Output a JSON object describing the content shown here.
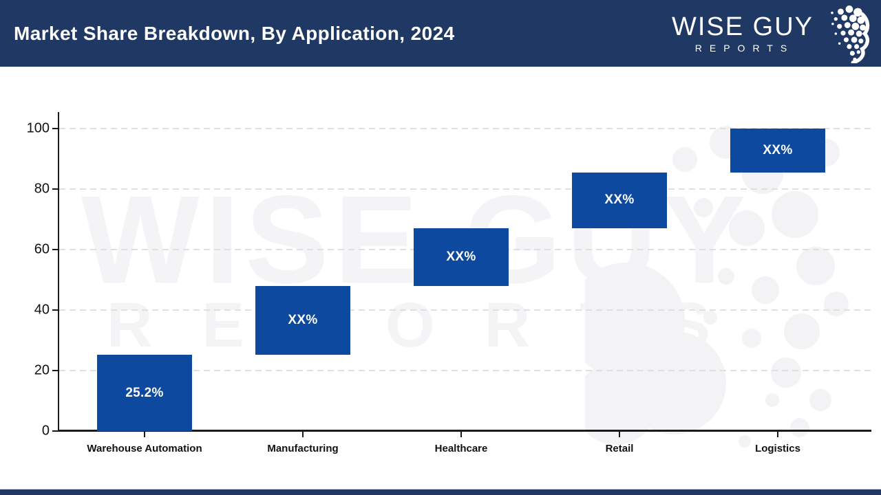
{
  "header": {
    "title": "Market Share Breakdown, By Application, 2024",
    "logo": {
      "line1": "WISE GUY",
      "line2": "REPORTS"
    }
  },
  "watermark": {
    "line1": "WISE GUY",
    "line2": "REPORTS"
  },
  "footer": {},
  "chart_data": {
    "type": "bar",
    "subtype": "waterfall",
    "title": "Market Share Breakdown, By Application, 2024",
    "categories": [
      "Warehouse Automation",
      "Manufacturing",
      "Healthcare",
      "Retail",
      "Logistics"
    ],
    "segments": [
      {
        "category": "Warehouse Automation",
        "start": 0,
        "end": 25.2,
        "label": "25.2%"
      },
      {
        "category": "Manufacturing",
        "start": 25.2,
        "end": 48,
        "label": "XX%"
      },
      {
        "category": "Healthcare",
        "start": 48,
        "end": 67,
        "label": "XX%"
      },
      {
        "category": "Retail",
        "start": 67,
        "end": 85.5,
        "label": "XX%"
      },
      {
        "category": "Logistics",
        "start": 85.5,
        "end": 100,
        "label": "XX%"
      }
    ],
    "ylim": [
      0,
      105
    ],
    "yticks": [
      0,
      20,
      40,
      60,
      80,
      100
    ],
    "xlabel": "",
    "ylabel": "",
    "grid": "horizontal-dashed",
    "legend": "none",
    "bar_color": "#0d4a9f",
    "bar_label_color": "#ffffff",
    "header_bg_color": "#1f3864",
    "footer_bg_color": "#1f3864",
    "gridline_color": "#e0e0e0",
    "axis_color": "#1a1a1a"
  }
}
